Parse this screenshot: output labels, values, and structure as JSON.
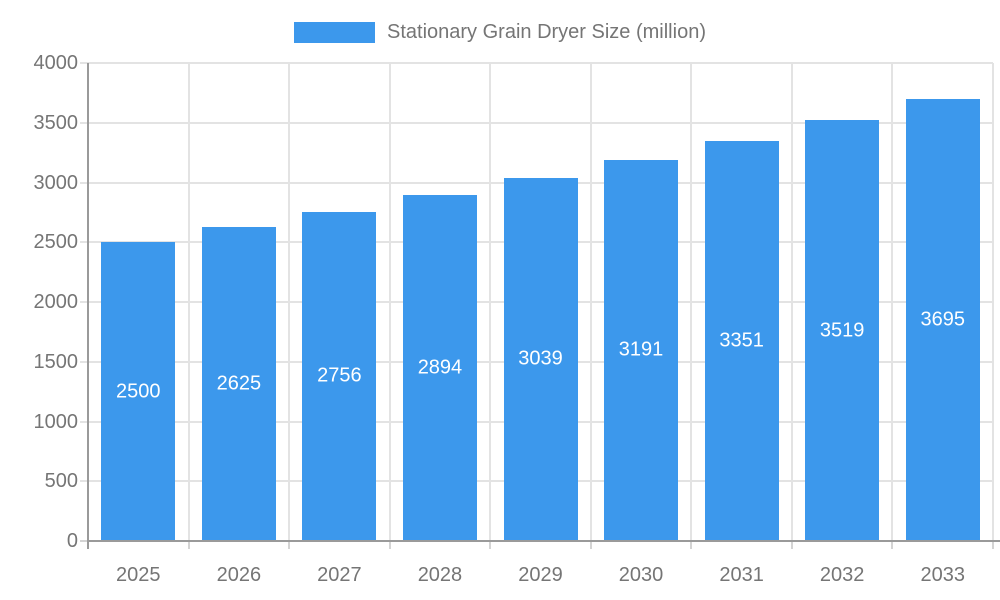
{
  "chart_data": {
    "type": "bar",
    "title": "Stationary Grain Dryer Size (million)",
    "series_name": "Stationary Grain Dryer Size (million)",
    "categories": [
      "2025",
      "2026",
      "2027",
      "2028",
      "2029",
      "2030",
      "2031",
      "2032",
      "2033"
    ],
    "values": [
      2500,
      2625,
      2756,
      2894,
      3039,
      3191,
      3351,
      3519,
      3695
    ],
    "xlabel": "",
    "ylabel": "",
    "ylim": [
      0,
      4000
    ],
    "ytick_step": 500,
    "ytick_labels": [
      "0",
      "500",
      "1000",
      "1500",
      "2000",
      "2500",
      "3000",
      "3500",
      "4000"
    ],
    "grid": true,
    "legend_position": "top-center",
    "value_label_position": "inside-center"
  },
  "colors": {
    "bar": "#3C98EC",
    "bar_value_text": "#FFFFFF",
    "axis_text": "#757575",
    "grid_line": "#E3E3E3",
    "tick_line": "#D4D4D4",
    "axis_line": "#9A9A9A",
    "background": "#FFFFFF"
  }
}
